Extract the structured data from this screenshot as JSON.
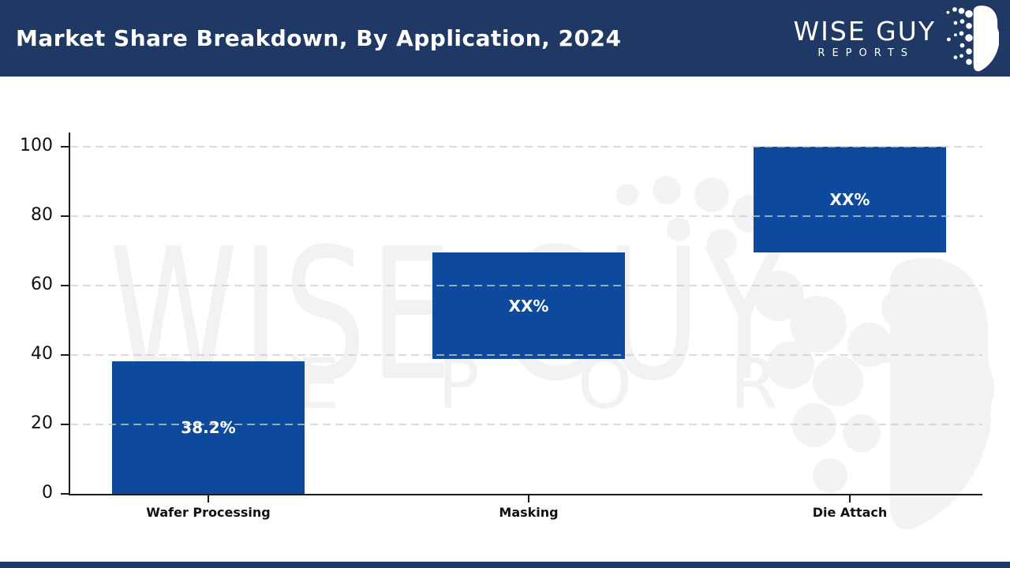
{
  "header": {
    "title": "Market Share Breakdown, By Application, 2024",
    "logo_line1": "WISE GUY",
    "logo_line2": "REPORTS",
    "bg_color": "#1F3864"
  },
  "watermark": {
    "line1": "WISE GUY",
    "line2": "R E P O R T S"
  },
  "chart_data": {
    "type": "bar",
    "subtype": "waterfall",
    "title": "Market Share Breakdown, By Application, 2024",
    "categories": [
      "Wafer Processing",
      "Masking",
      "Die Attach"
    ],
    "series": [
      {
        "name": "Market Share",
        "segments": [
          {
            "category": "Wafer Processing",
            "start": 0,
            "end": 38.2,
            "label": "38.2%"
          },
          {
            "category": "Masking",
            "start": 38.9,
            "end": 69.5,
            "label": "XX%"
          },
          {
            "category": "Die Attach",
            "start": 69.5,
            "end": 100,
            "label": "XX%"
          }
        ]
      }
    ],
    "xlabel": "",
    "ylabel": "",
    "ylim": [
      0,
      105
    ],
    "yticks": [
      0,
      20,
      40,
      60,
      80,
      100
    ],
    "grid": "horizontal-dashed",
    "legend": "none",
    "bar_color": "#0D4A9E",
    "bar_label_color": "#FFFFFF",
    "axis_color": "#1a1a1a"
  },
  "footer": {
    "bg_color": "#1F3864"
  }
}
